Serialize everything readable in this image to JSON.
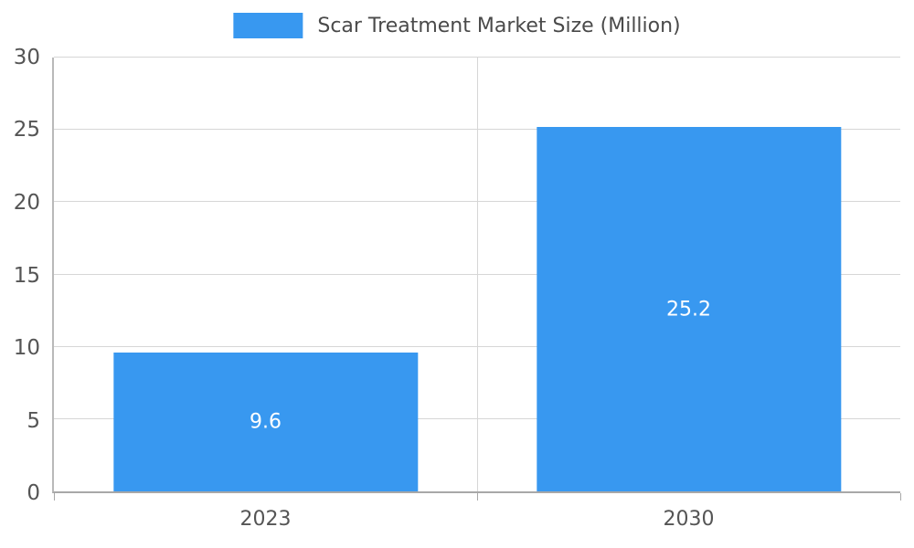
{
  "chart_data": {
    "type": "bar",
    "title": "Scar Treatment Market Size (Million)",
    "categories": [
      "2023",
      "2030"
    ],
    "values": [
      9.6,
      25.2
    ],
    "value_labels": [
      "9.6",
      "25.2"
    ],
    "xlabel": "",
    "ylabel": "",
    "ylim": [
      0,
      30
    ],
    "ytick_step": 5,
    "yticks": [
      "0",
      "5",
      "10",
      "15",
      "20",
      "25",
      "30"
    ],
    "grid": true,
    "legend_position": "top-center",
    "bar_color": "#3898F0",
    "label_color": "#ffffff",
    "tick_color": "#555555"
  },
  "legend": {
    "label": "Scar Treatment Market Size (Million)"
  }
}
